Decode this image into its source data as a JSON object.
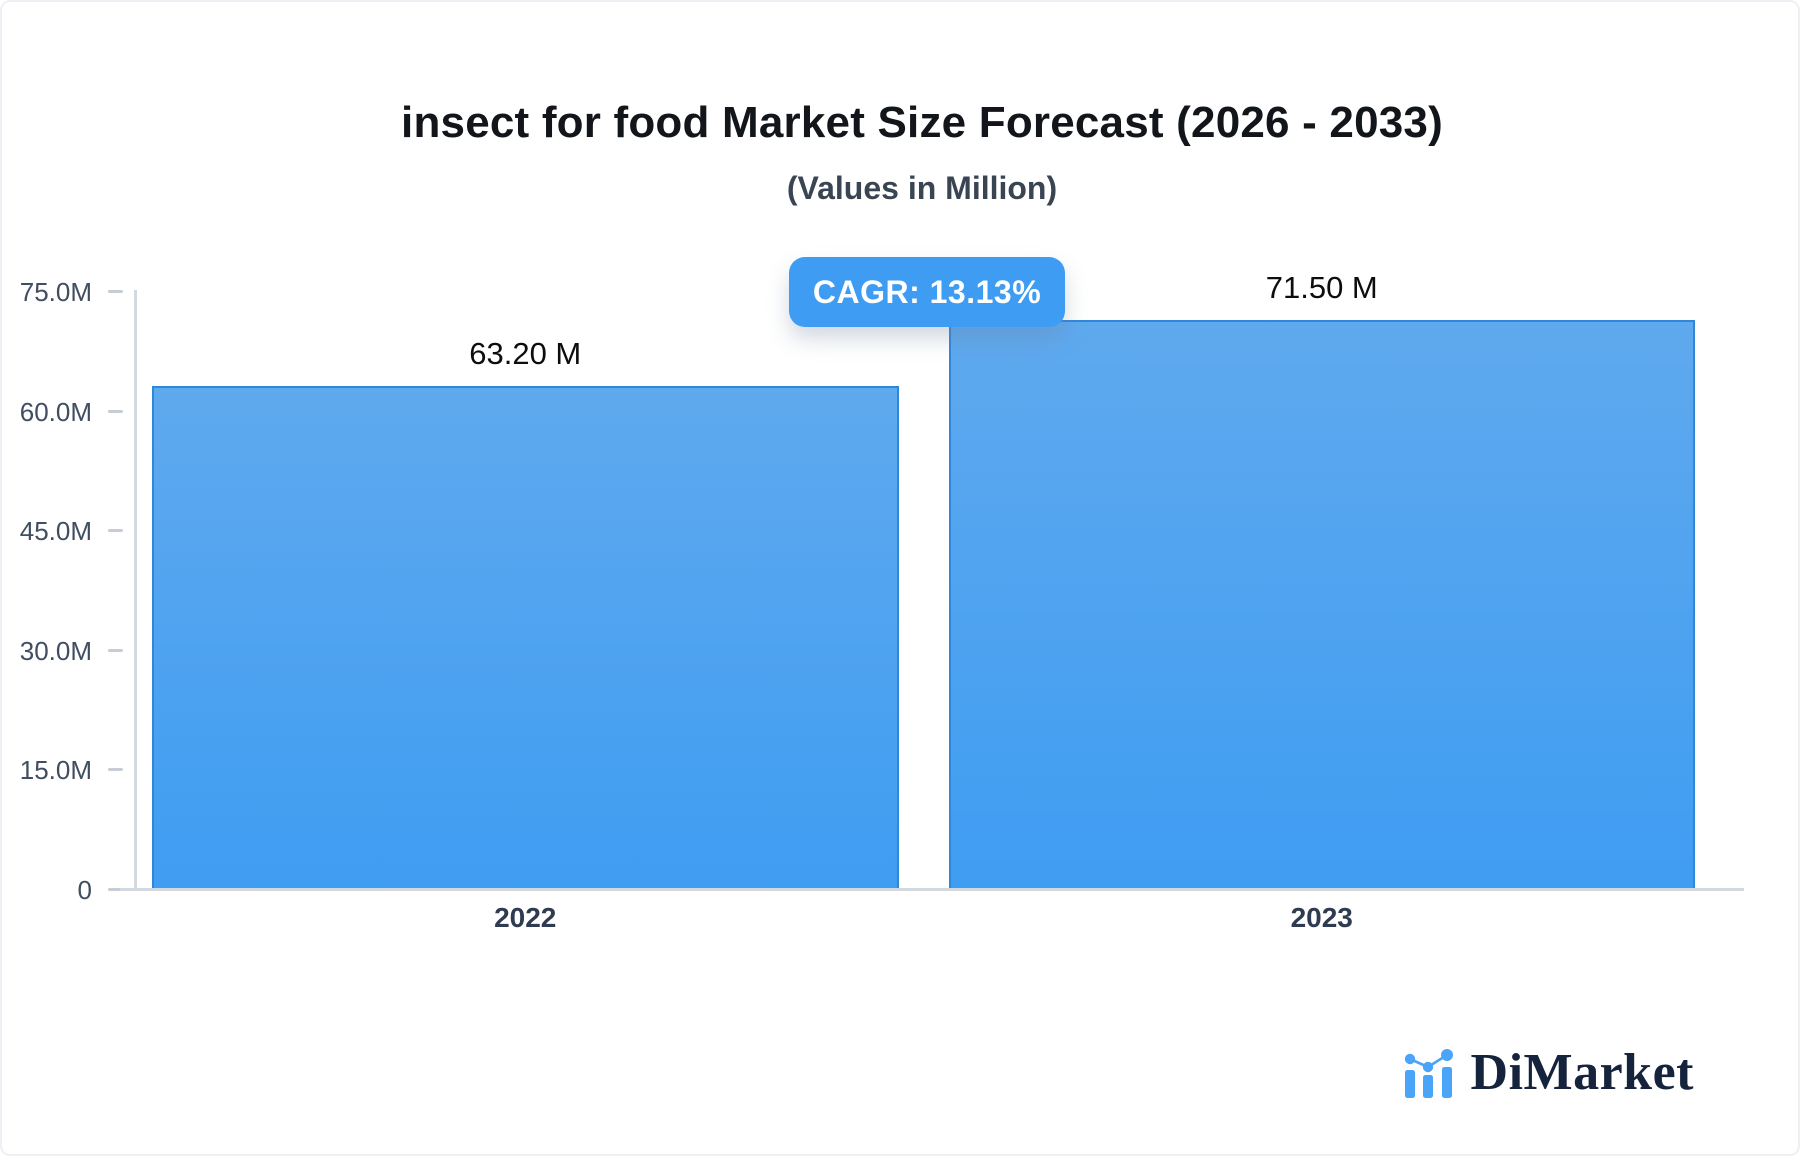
{
  "chart": {
    "title": "insect for food Market Size Forecast (2026 - 2033)",
    "subtitle": "(Values in Million)",
    "cagr_label": "CAGR: 13.13%",
    "cagr_bg_color": "#3e9cf2"
  },
  "chart_data": {
    "type": "bar",
    "categories": [
      "2022",
      "2023"
    ],
    "values": [
      63.2,
      71.5
    ],
    "value_labels": [
      "63.20 M",
      "71.50 M"
    ],
    "title": "insect for food Market Size Forecast (2026 - 2033)",
    "subtitle": "(Values in Million)",
    "annotation": "CAGR: 13.13%",
    "xlabel": "",
    "ylabel": "",
    "ylim": [
      0,
      75
    ],
    "yticks": [
      {
        "value": 75,
        "label": "75.0M"
      },
      {
        "value": 60,
        "label": "60.0M"
      },
      {
        "value": 45,
        "label": "45.0M"
      },
      {
        "value": 30,
        "label": "30.0M"
      },
      {
        "value": 15,
        "label": "15.0M"
      },
      {
        "value": 0,
        "label": "0"
      }
    ],
    "grid": false,
    "legend": null,
    "bar_color_top": "#5fa9ee",
    "bar_color_bottom": "#3f9df2",
    "bar_border_color": "#2f87da",
    "axis_color": "#d4d9e0"
  },
  "branding": {
    "logo_text": "DiMarket",
    "logo_icon": "mini-bar-chart-icon",
    "logo_text_color": "#16233d",
    "logo_icon_color": "#4aa4f8"
  }
}
